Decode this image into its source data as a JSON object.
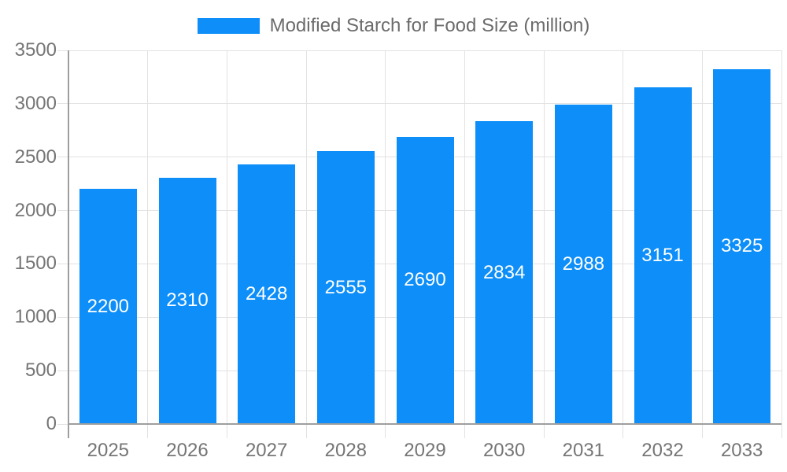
{
  "legend": {
    "label": "Modified Starch for Food Size (million)"
  },
  "chart_data": {
    "type": "bar",
    "title": "Modified Starch for Food Size (million)",
    "series_name": "Modified Starch for Food Size (million)",
    "categories": [
      "2025",
      "2026",
      "2027",
      "2028",
      "2029",
      "2030",
      "2031",
      "2032",
      "2033"
    ],
    "values": [
      2200,
      2310,
      2428,
      2555,
      2690,
      2834,
      2988,
      3151,
      3325
    ],
    "xlabel": "",
    "ylabel": "",
    "ylim": [
      0,
      3500
    ],
    "ytick_step": 500,
    "yticks": [
      0,
      500,
      1000,
      1500,
      2000,
      2500,
      3000,
      3500
    ],
    "grid": true,
    "legend_position": "top",
    "value_labels": "inside-center",
    "colors": {
      "bar": "#0d8ef8",
      "value_label": "#ffffff",
      "axis_line": "#9e9e9e",
      "gridline": "#e2e2e2",
      "tick_label": "#757575",
      "legend_text": "#6b6b6b",
      "background": "#ffffff"
    }
  }
}
